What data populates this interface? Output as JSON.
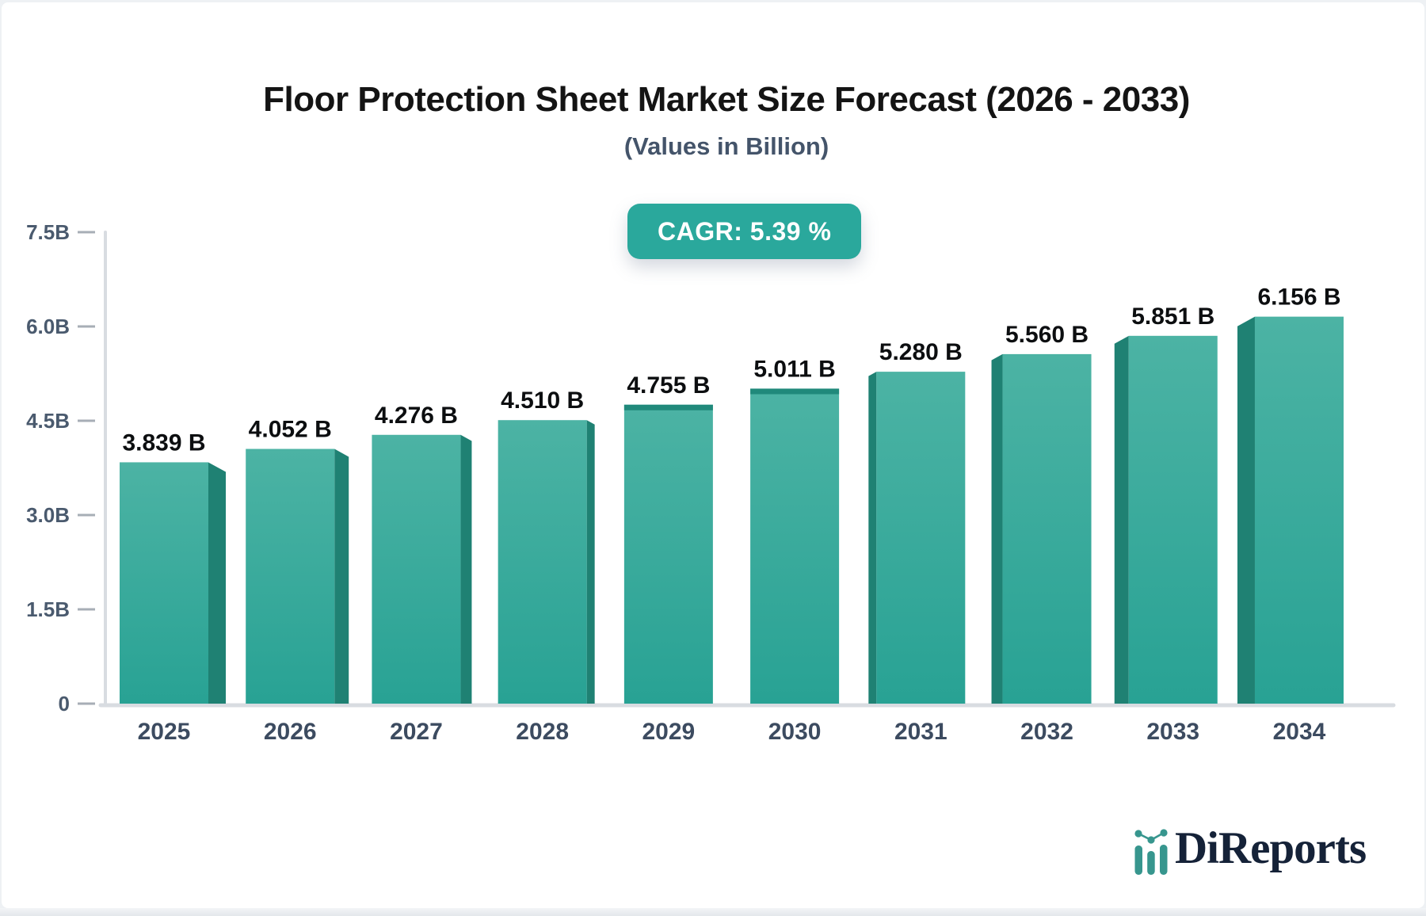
{
  "header": {
    "title": "Floor Protection Sheet Market Size Forecast (2026 - 2033)",
    "subtitle": "(Values in Billion)",
    "cagr_badge": "CAGR: 5.39 %"
  },
  "branding": {
    "logo_text": "DiReports",
    "logo_text_color": "#152238",
    "logo_icon_color": "#37968e"
  },
  "chart_data": {
    "type": "bar",
    "title": "Floor Protection Sheet Market Size Forecast (2026 - 2033)",
    "subtitle": "(Values in Billion)",
    "cagr_percent": 5.39,
    "categories": [
      "2025",
      "2026",
      "2027",
      "2028",
      "2029",
      "2030",
      "2031",
      "2032",
      "2033",
      "2034"
    ],
    "values": [
      3.839,
      4.052,
      4.276,
      4.51,
      4.755,
      5.011,
      5.28,
      5.56,
      5.851,
      6.156
    ],
    "value_labels": [
      "3.839 B",
      "4.052 B",
      "4.276 B",
      "4.510 B",
      "4.755 B",
      "5.011 B",
      "5.280 B",
      "5.560 B",
      "5.851 B",
      "6.156 B"
    ],
    "xlabel": "",
    "ylabel": "",
    "ylim": [
      0,
      7.5
    ],
    "yticks": [
      0,
      1.5,
      3.0,
      4.5,
      6.0,
      7.5
    ],
    "ytick_labels": [
      "0",
      "1.5B",
      "3.0B",
      "4.5B",
      "6.0B",
      "7.5B"
    ],
    "grid": false,
    "legend": null,
    "colors": {
      "bar_front_top": "#4cb3a4",
      "bar_front_bottom": "#28a294",
      "bar_side": "#1f8173",
      "bar_top_face": "#20897b",
      "axis": "#d8dce1",
      "tick_dash": "#a7aeb6",
      "tick_label": "#4a5a6e",
      "year_label": "#3c4b60",
      "value_label": "#0c0e10"
    }
  }
}
